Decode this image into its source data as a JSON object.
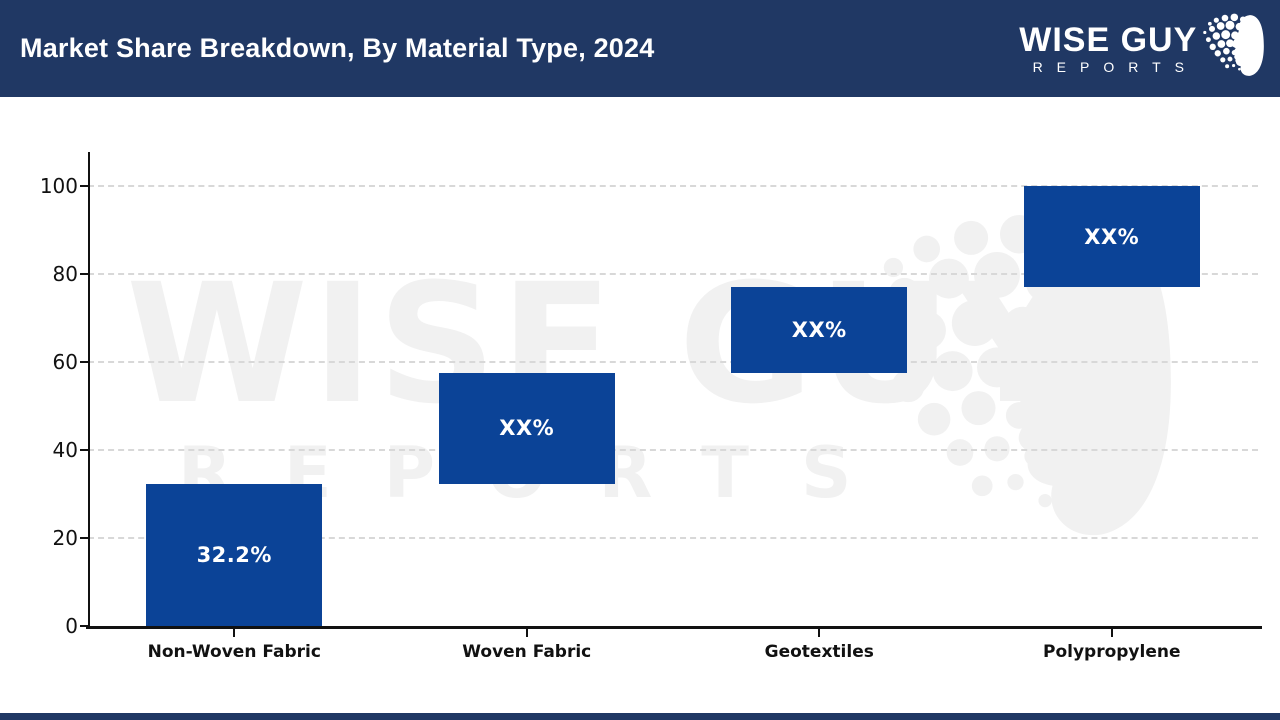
{
  "header": {
    "title": "Market Share Breakdown, By Material Type, 2024",
    "brand": {
      "line1": "WISE GUY",
      "line2": "REPORTS"
    }
  },
  "watermark": {
    "line1": "WISE GUY",
    "line2": "REPORTS"
  },
  "colors": {
    "header_bg": "#203864",
    "header_text": "#ffffff",
    "bar": "#0b4397",
    "bar_label": "#ffffff",
    "axis": "#111111",
    "grid": "#d8d8d8",
    "watermark": "#f1f1f1",
    "footer_bg": "#203864"
  },
  "chart_data": {
    "type": "bar",
    "subtype": "waterfall",
    "title": "Market Share Breakdown, By Material Type, 2024",
    "xlabel": "",
    "ylabel": "",
    "categories": [
      "Non-Woven Fabric",
      "Woven Fabric",
      "Geotextiles",
      "Polypropylene"
    ],
    "segments": [
      {
        "category": "Non-Woven Fabric",
        "start": 0,
        "end": 32.2,
        "label": "32.2%"
      },
      {
        "category": "Woven Fabric",
        "start": 32.2,
        "end": 57.6,
        "label": "XX%"
      },
      {
        "category": "Geotextiles",
        "start": 57.6,
        "end": 77.0,
        "label": "XX%"
      },
      {
        "category": "Polypropylene",
        "start": 77.0,
        "end": 100.0,
        "label": "XX%"
      }
    ],
    "yticks": [
      0,
      20,
      40,
      60,
      80,
      100
    ],
    "ylim": [
      0,
      105
    ],
    "grid": "horizontal-dashed",
    "legend": "none"
  }
}
